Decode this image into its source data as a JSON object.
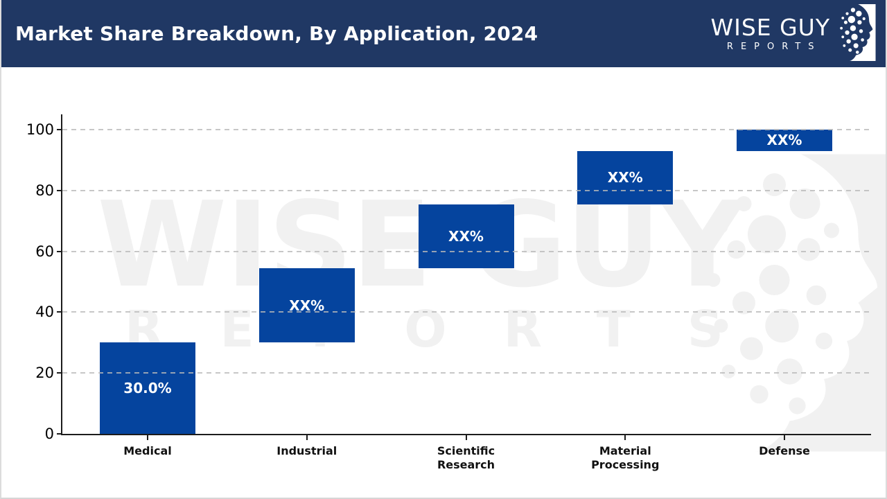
{
  "header": {
    "title": "Market Share Breakdown, By Application, 2024",
    "logo": {
      "line1": "WISE GUY",
      "line2": "REPORTS"
    }
  },
  "watermark": {
    "line1": "WISE GUY",
    "line2": "REPORTS"
  },
  "colors": {
    "header_bg": "#203864",
    "bar": "#05449e",
    "axis": "#1c1c1c",
    "grid": "rgba(185,185,185,0.8)",
    "watermark": "#f1f1f1",
    "title_text": "#ffffff",
    "tick_text": "#000000",
    "category_text": "#111111",
    "bar_label_text": "#ffffff"
  },
  "chart_data": {
    "type": "bar",
    "subtype": "waterfall",
    "title": "Market Share Breakdown, By Application, 2024",
    "xlabel": "",
    "ylabel": "",
    "ylim": [
      0,
      100
    ],
    "yticks": [
      0,
      20,
      40,
      60,
      80,
      100
    ],
    "grid": "horizontal-dashed",
    "legend": "none",
    "bars": [
      {
        "category": "Medical",
        "start": 0,
        "end": 30,
        "label": "30.0%"
      },
      {
        "category": "Industrial",
        "start": 30,
        "end": 54.5,
        "label": "XX%"
      },
      {
        "category": "Scientific\nResearch",
        "start": 54.5,
        "end": 75.5,
        "label": "XX%"
      },
      {
        "category": "Material\nProcessing",
        "start": 75.5,
        "end": 93,
        "label": "XX%"
      },
      {
        "category": "Defense",
        "start": 93,
        "end": 100,
        "label": "XX%"
      }
    ]
  }
}
